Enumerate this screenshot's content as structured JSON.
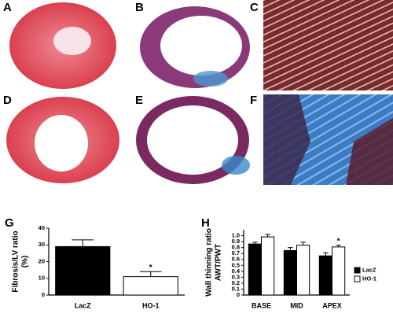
{
  "panels": [
    {
      "label": "A"
    },
    {
      "label": "B"
    },
    {
      "label": "C"
    },
    {
      "label": "D"
    },
    {
      "label": "E"
    },
    {
      "label": "F"
    }
  ],
  "chart_data": [
    {
      "type": "bar",
      "panel": "G",
      "y_label": [
        "Fibrosis/LV ratio",
        "(%)"
      ],
      "categories": [
        "LacZ",
        "HO-1"
      ],
      "series": [
        {
          "values": [
            29,
            11
          ],
          "errors": [
            4,
            3
          ],
          "colors": [
            "#000000",
            "#ffffff"
          ]
        }
      ],
      "ylim": [
        0,
        40
      ],
      "yticks": [
        0,
        10,
        20,
        30,
        40
      ],
      "annotations": [
        {
          "text": "*",
          "category": 1,
          "series": 0
        }
      ]
    },
    {
      "type": "bar",
      "panel": "H",
      "y_label": [
        "Wall thinning ratio",
        "AWT/PWT"
      ],
      "categories": [
        "BASE",
        "MID",
        "APEX"
      ],
      "series": [
        {
          "name": "LacZ",
          "color": "#000000",
          "values": [
            0.86,
            0.75,
            0.66
          ],
          "errors": [
            0.03,
            0.05,
            0.05
          ]
        },
        {
          "name": "HO-1",
          "color": "#ffffff",
          "values": [
            0.98,
            0.84,
            0.81
          ],
          "errors": [
            0.04,
            0.05,
            0.03
          ]
        }
      ],
      "ylim": [
        0,
        1.1
      ],
      "yticks": [
        0,
        0.1,
        0.2,
        0.3,
        0.4,
        0.5,
        0.6,
        0.7,
        0.8,
        0.9,
        {
          "value": 1,
          "label": "1.0"
        }
      ],
      "legend": "right",
      "annotations": [
        {
          "text": "*",
          "category": 2,
          "series": 1
        }
      ]
    }
  ]
}
